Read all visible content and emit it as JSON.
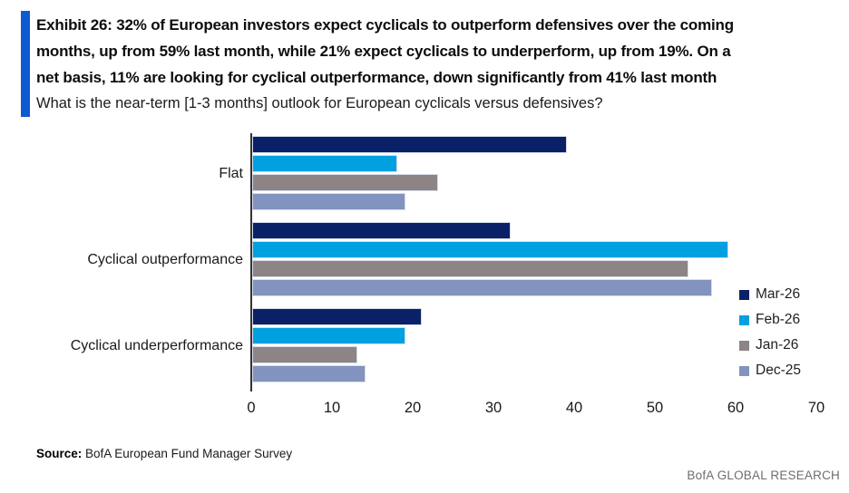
{
  "header": {
    "exhibit_title_lines": [
      "Exhibit 26: 32% of European investors expect cyclicals to outperform defensives over the coming",
      "months, up from 59% last month, while 21% expect cyclicals to underperform, up from 19%. On a",
      "net basis, 11% are looking for cyclical outperformance, down significantly from 41% last month"
    ],
    "subtitle": "What is the near-term [1-3 months] outlook for European cyclicals versus defensives?",
    "accent_color": "#0D5BD1"
  },
  "chart_data": {
    "type": "bar",
    "orientation": "horizontal",
    "title": "",
    "xlabel": "",
    "ylabel": "",
    "categories": [
      "Flat",
      "Cyclical outperformance",
      "Cyclical underperformance"
    ],
    "series": [
      {
        "name": "Mar-26",
        "color": "#0A2167",
        "values": [
          39,
          32,
          21
        ]
      },
      {
        "name": "Feb-26",
        "color": "#00A0E1",
        "values": [
          18,
          59,
          19
        ]
      },
      {
        "name": "Jan-26",
        "color": "#8D8486",
        "values": [
          23,
          54,
          13
        ]
      },
      {
        "name": "Dec-25",
        "color": "#8193BE",
        "values": [
          19,
          57,
          14
        ]
      }
    ],
    "xlim": [
      0,
      70
    ],
    "x_ticks": [
      0,
      10,
      20,
      30,
      40,
      50,
      60,
      70
    ],
    "grid": false,
    "legend_position": "right-middle"
  },
  "footer": {
    "source_label": "Source:",
    "source_text": " BofA European Fund Manager Survey",
    "brand": "BofA GLOBAL RESEARCH"
  }
}
